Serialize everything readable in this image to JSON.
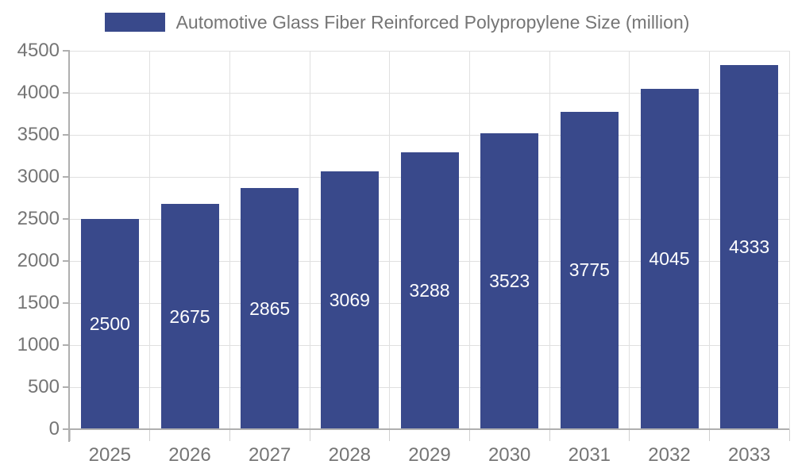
{
  "legend": {
    "label": "Automotive Glass Fiber Reinforced Polypropylene Size (million)"
  },
  "chart_data": {
    "type": "bar",
    "title": "Automotive Glass Fiber Reinforced Polypropylene Size (million)",
    "series_name": "Automotive Glass Fiber Reinforced Polypropylene Size (million)",
    "categories": [
      "2025",
      "2026",
      "2027",
      "2028",
      "2029",
      "2030",
      "2031",
      "2032",
      "2033"
    ],
    "values": [
      2500,
      2675,
      2865,
      3069,
      3288,
      3523,
      3775,
      4045,
      4333
    ],
    "xlabel": "",
    "ylabel": "",
    "ylim": [
      0,
      4500
    ],
    "ytick_step": 500,
    "ytick_labels": [
      "0",
      "500",
      "1000",
      "1500",
      "2000",
      "2500",
      "3000",
      "3500",
      "4000",
      "4500"
    ],
    "grid": true,
    "legend_position": "top",
    "bar_labels_visible": true,
    "colors": {
      "bar": "#39498B",
      "bar_label": "#FFFFFF",
      "grid": "#E0E0E0",
      "axis": "#AFAFAF",
      "category_tick": "#CFCFCF",
      "tick_text": "#757575",
      "legend_text": "#757575",
      "background": "#FFFFFF"
    }
  }
}
